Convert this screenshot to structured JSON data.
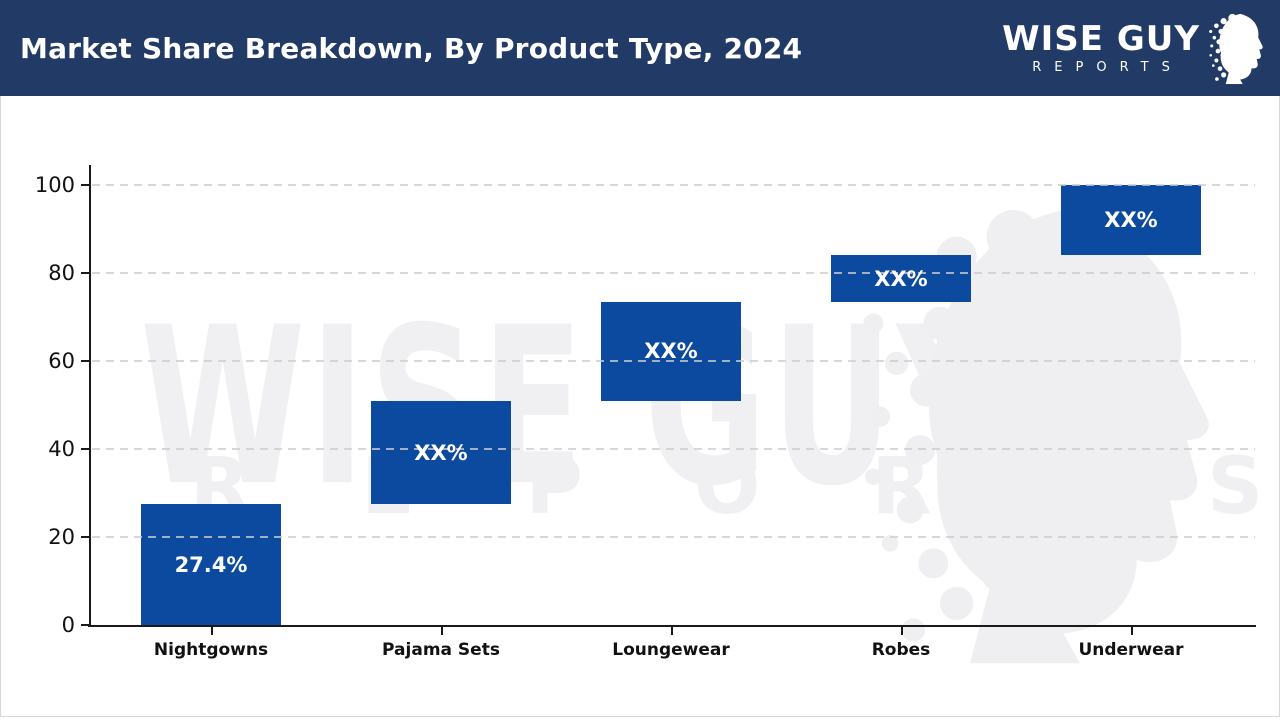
{
  "header": {
    "title": "Market Share Breakdown, By Product Type, 2024",
    "bg_color": "#223A66",
    "logo": {
      "line1": "WISE GUY",
      "line2": "REPORTS"
    }
  },
  "watermark": {
    "line1": "WISE GUY",
    "line2": "R E P O R T S"
  },
  "chart_data": {
    "type": "bar",
    "subtype": "waterfall",
    "title": "Market Share Breakdown, By Product Type, 2024",
    "categories": [
      "Nightgowns",
      "Pajama Sets",
      "Loungewear",
      "Robes",
      "Underwear"
    ],
    "segments": [
      {
        "category": "Nightgowns",
        "start": 0,
        "end": 27.4,
        "label": "27.4%"
      },
      {
        "category": "Pajama Sets",
        "start": 27.4,
        "end": 51,
        "label": "XX%"
      },
      {
        "category": "Loungewear",
        "start": 51,
        "end": 73.4,
        "label": "XX%"
      },
      {
        "category": "Robes",
        "start": 73.4,
        "end": 84,
        "label": "XX%"
      },
      {
        "category": "Underwear",
        "start": 84,
        "end": 100,
        "label": "XX%"
      }
    ],
    "yticks": [
      0,
      20,
      40,
      60,
      80,
      100
    ],
    "ylim": [
      0,
      104.5
    ],
    "xlabel": "",
    "ylabel": "",
    "bar_color": "#0B4A9E",
    "label_color": "#ffffff",
    "grid": "horizontal dashed",
    "legend": "none"
  }
}
